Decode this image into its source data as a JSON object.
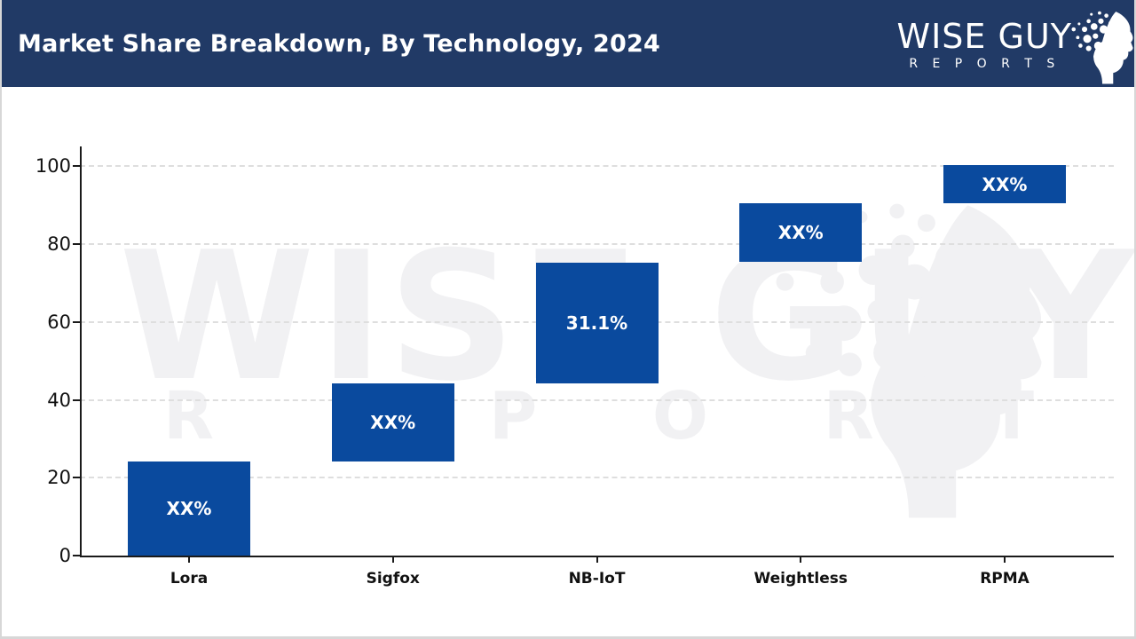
{
  "header": {
    "title": "Market Share Breakdown, By Technology, 2024",
    "logo": {
      "line1": "WISE GUY",
      "line2": "R E P O R T S"
    }
  },
  "watermark": {
    "line1": "WISE GUY",
    "line2": "R E P O R T S"
  },
  "colors": {
    "header_bg": "#213a66",
    "bar": "#0a4a9e",
    "bar_label": "#ffffff",
    "axis": "#1a1a1a",
    "grid": "#dedede",
    "watermark": "#f1f1f3"
  },
  "chart_data": {
    "type": "bar",
    "subtype": "floating-waterfall",
    "title": "Market Share Breakdown, By Technology, 2024",
    "categories": [
      "Lora",
      "Sigfox",
      "NB-IoT",
      "Weightless",
      "RPMA"
    ],
    "bars": [
      {
        "category": "Lora",
        "start": 0,
        "end": 24.2,
        "value": 24.2,
        "label": "XX%"
      },
      {
        "category": "Sigfox",
        "start": 24.2,
        "end": 44.2,
        "value": 20.0,
        "label": "XX%"
      },
      {
        "category": "NB-IoT",
        "start": 44.2,
        "end": 75.3,
        "value": 31.1,
        "label": "31.1%"
      },
      {
        "category": "Weightless",
        "start": 75.4,
        "end": 90.5,
        "value": 15.1,
        "label": "XX%"
      },
      {
        "category": "RPMA",
        "start": 90.5,
        "end": 100.2,
        "value": 9.7,
        "label": "XX%"
      }
    ],
    "xlabel": "",
    "ylabel": "",
    "ylim": [
      0,
      104
    ],
    "yticks": [
      0,
      20,
      40,
      60,
      80,
      100
    ],
    "grid": "dashed-horizontal",
    "legend": "none",
    "bar_value_labels": "inside-center"
  }
}
